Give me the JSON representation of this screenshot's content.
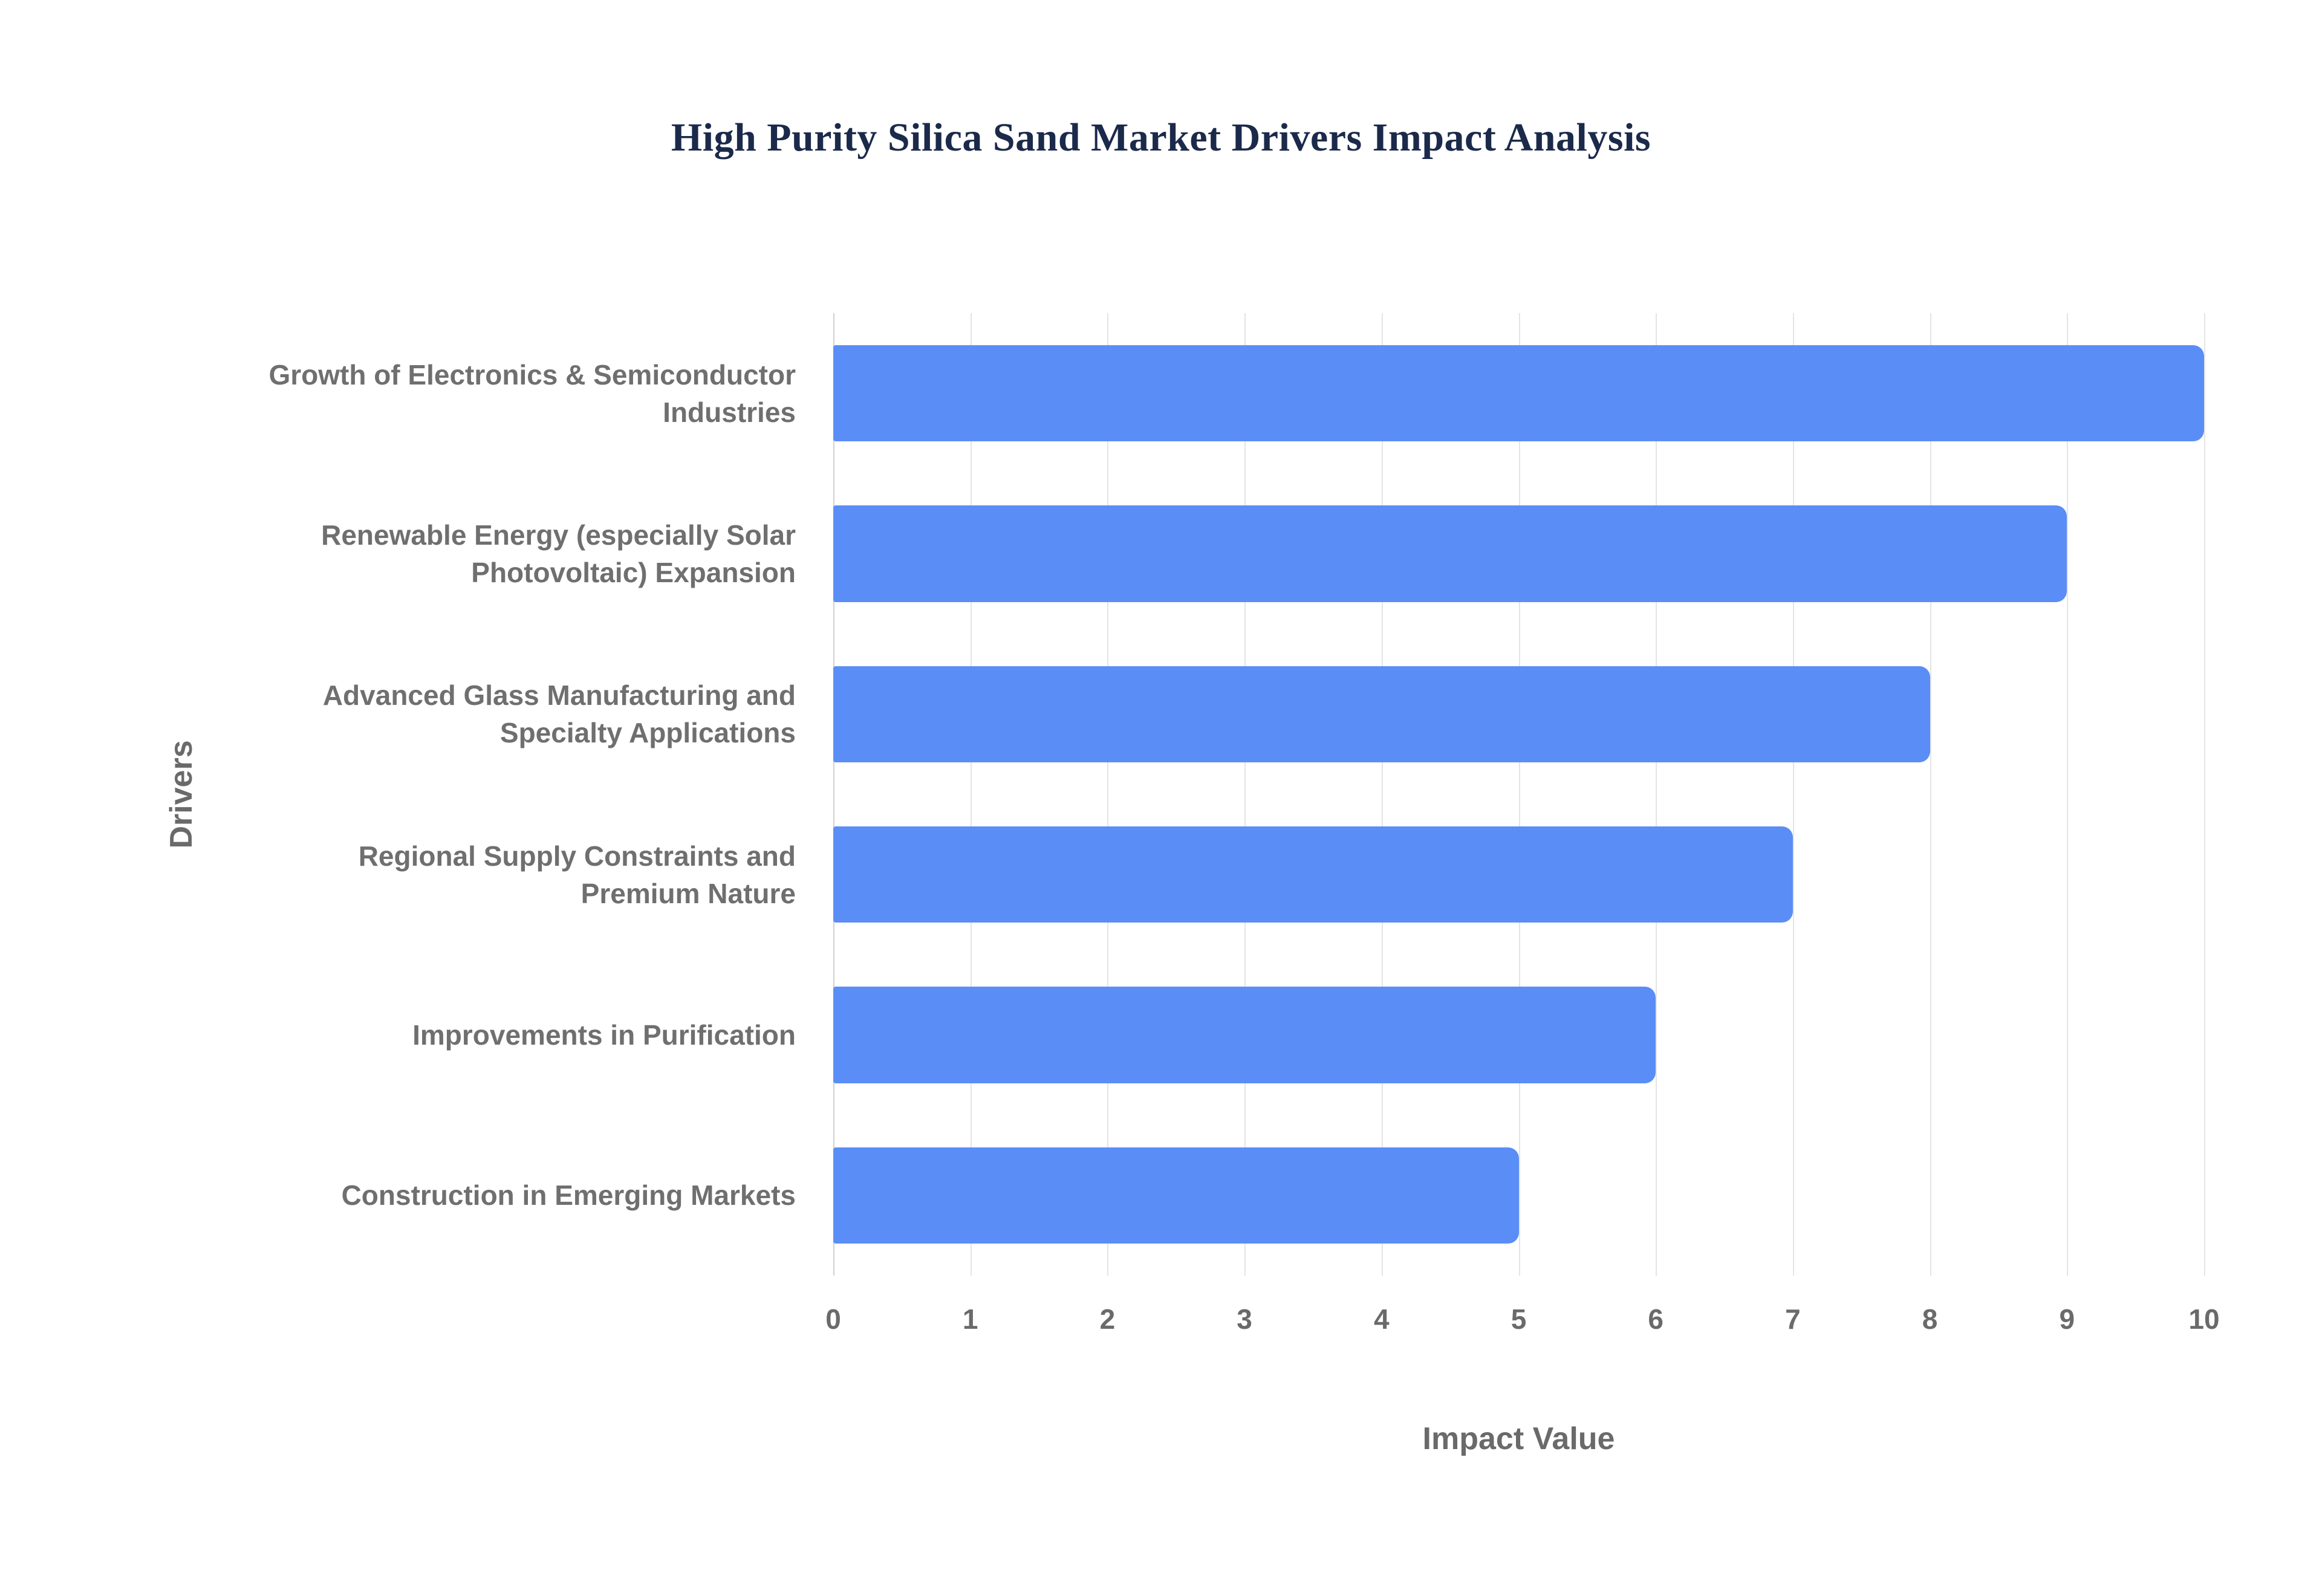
{
  "chart_data": {
    "type": "bar",
    "orientation": "horizontal",
    "title": "High Purity Silica Sand Market Drivers Impact Analysis",
    "categories": [
      "Growth of Electronics & Semiconductor Industries",
      "Renewable Energy (especially Solar Photovoltaic) Expansion",
      "Advanced Glass Manufacturing and Specialty Applications",
      "Regional Supply Constraints and Premium Nature",
      "Improvements in Purification",
      "Construction in Emerging Markets"
    ],
    "values": [
      10,
      9,
      8,
      7,
      6,
      5
    ],
    "xlabel": "Impact Value",
    "ylabel": "Drivers",
    "xlim": [
      0,
      10
    ],
    "xticks": [
      0,
      1,
      2,
      3,
      4,
      5,
      6,
      7,
      8,
      9,
      10
    ],
    "bar_color": "#5b8df6",
    "grid": true,
    "legend": false
  }
}
